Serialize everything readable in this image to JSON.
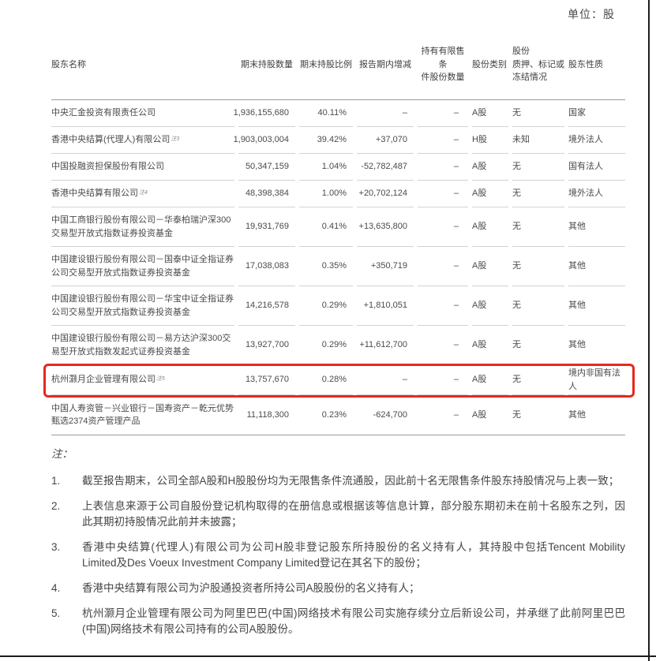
{
  "page": {
    "unit_label": "单位：股"
  },
  "highlight": {
    "color": "#e8281e"
  },
  "table": {
    "headers": [
      "股东名称",
      "期末持股数量",
      "期末持股比例",
      "报告期内增减",
      "持有有限售条\n件股份数量",
      "股份类别",
      "股份\n质押、标记或\n冻结情况",
      "股东性质"
    ],
    "rows": [
      {
        "name": "中央汇金投资有限责任公司",
        "note_ref": "",
        "shares": "1,936,155,680",
        "ratio": "40.11%",
        "change": "–",
        "restricted": "–",
        "share_class": "A股",
        "pledge": "无",
        "nature": "国家"
      },
      {
        "name": "香港中央结算(代理人)有限公司",
        "note_ref": "注3",
        "shares": "1,903,003,004",
        "ratio": "39.42%",
        "change": "+37,070",
        "restricted": "–",
        "share_class": "H股",
        "pledge": "未知",
        "nature": "境外法人"
      },
      {
        "name": "中国投融资担保股份有限公司",
        "note_ref": "",
        "shares": "50,347,159",
        "ratio": "1.04%",
        "change": "-52,782,487",
        "restricted": "–",
        "share_class": "A股",
        "pledge": "无",
        "nature": "国有法人"
      },
      {
        "name": "香港中央结算有限公司",
        "note_ref": "注4",
        "shares": "48,398,384",
        "ratio": "1.00%",
        "change": "+20,702,124",
        "restricted": "–",
        "share_class": "A股",
        "pledge": "无",
        "nature": "境外法人"
      },
      {
        "name": "中国工商银行股份有限公司－华泰柏瑞沪深300交易型开放式指数证券投资基金",
        "note_ref": "",
        "shares": "19,931,769",
        "ratio": "0.41%",
        "change": "+13,635,800",
        "restricted": "–",
        "share_class": "A股",
        "pledge": "无",
        "nature": "其他"
      },
      {
        "name": "中国建设银行股份有限公司－国泰中证全指证券公司交易型开放式指数证券投资基金",
        "note_ref": "",
        "shares": "17,038,083",
        "ratio": "0.35%",
        "change": "+350,719",
        "restricted": "–",
        "share_class": "A股",
        "pledge": "无",
        "nature": "其他"
      },
      {
        "name": "中国建设银行股份有限公司－华宝中证全指证券公司交易型开放式指数证券投资基金",
        "note_ref": "",
        "shares": "14,216,578",
        "ratio": "0.29%",
        "change": "+1,810,051",
        "restricted": "–",
        "share_class": "A股",
        "pledge": "无",
        "nature": "其他"
      },
      {
        "name": "中国建设银行股份有限公司－易方达沪深300交易型开放式指数发起式证券投资基金",
        "note_ref": "",
        "shares": "13,927,700",
        "ratio": "0.29%",
        "change": "+11,612,700",
        "restricted": "–",
        "share_class": "A股",
        "pledge": "无",
        "nature": "其他"
      },
      {
        "name": "杭州灏月企业管理有限公司",
        "note_ref": "注5",
        "shares": "13,757,670",
        "ratio": "0.28%",
        "change": "–",
        "restricted": "–",
        "share_class": "A股",
        "pledge": "无",
        "nature": "境内非国有法人"
      },
      {
        "name": "中国人寿资管－兴业银行－国寿资产－乾元优势甄选2374资产管理产品",
        "note_ref": "",
        "shares": "11,118,300",
        "ratio": "0.23%",
        "change": "-624,700",
        "restricted": "–",
        "share_class": "A股",
        "pledge": "无",
        "nature": "其他"
      }
    ]
  },
  "notes": {
    "title": "注：",
    "items": [
      {
        "num": "1.",
        "text": "截至报告期末，公司全部A股和H股股份均为无限售条件流通股，因此前十名无限售条件股东持股情况与上表一致；"
      },
      {
        "num": "2.",
        "text": "上表信息来源于公司自股份登记机构取得的在册信息或根据该等信息计算，部分股东期初未在前十名股东之列，因此其期初持股情况此前并未披露；"
      },
      {
        "num": "3.",
        "text": "香港中央结算(代理人)有限公司为公司H股非登记股东所持股份的名义持有人，其持股中包括Tencent Mobility Limited及Des Voeux Investment Company Limited登记在其名下的股份；"
      },
      {
        "num": "4.",
        "text": "香港中央结算有限公司为沪股通投资者所持公司A股股份的名义持有人；"
      },
      {
        "num": "5.",
        "text": "杭州灏月企业管理有限公司为阿里巴巴(中国)网络技术有限公司实施存续分立后新设公司，并承继了此前阿里巴巴(中国)网络技术有限公司持有的公司A股股份。"
      }
    ]
  }
}
